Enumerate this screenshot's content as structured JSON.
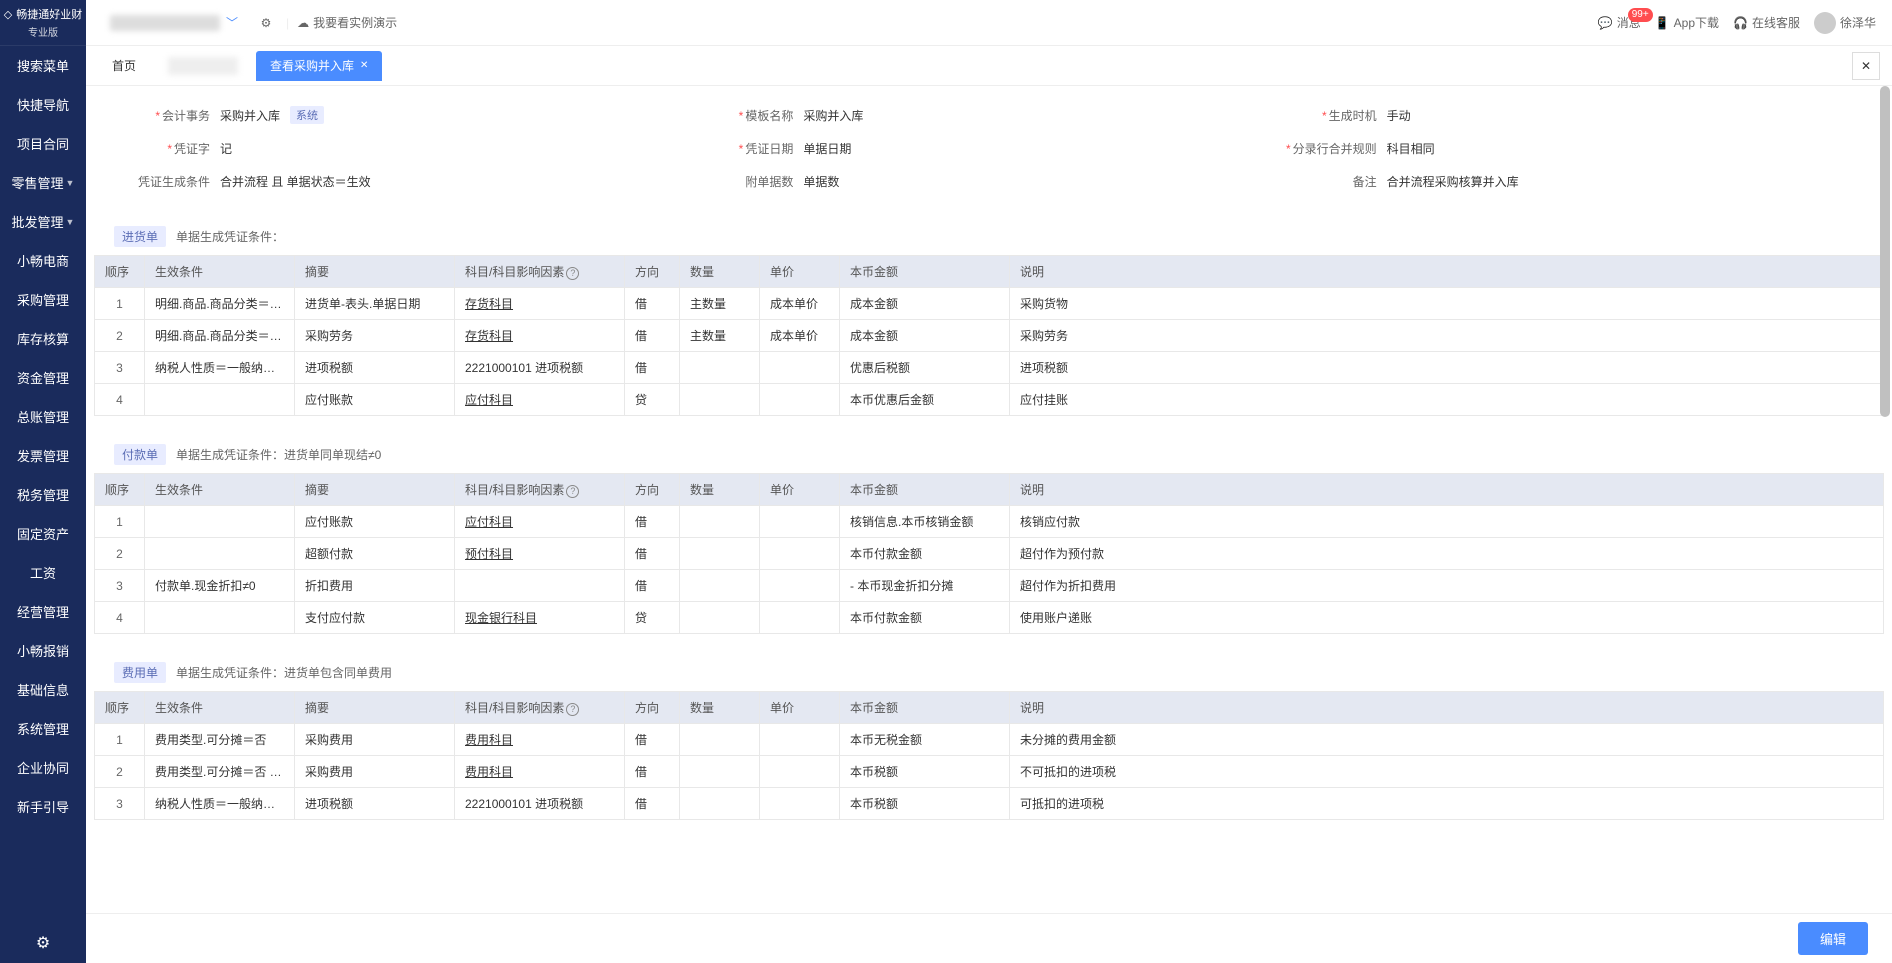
{
  "brand": {
    "name": "畅捷通好业财",
    "edition": "专业版"
  },
  "sidebar": {
    "items": [
      {
        "label": "搜索菜单",
        "expand": false
      },
      {
        "label": "快捷导航",
        "expand": false
      },
      {
        "label": "项目合同",
        "expand": false
      },
      {
        "label": "零售管理",
        "expand": true
      },
      {
        "label": "批发管理",
        "expand": true
      },
      {
        "label": "小畅电商",
        "expand": false
      },
      {
        "label": "采购管理",
        "expand": false
      },
      {
        "label": "库存核算",
        "expand": false
      },
      {
        "label": "资金管理",
        "expand": false
      },
      {
        "label": "总账管理",
        "expand": false
      },
      {
        "label": "发票管理",
        "expand": false
      },
      {
        "label": "税务管理",
        "expand": false
      },
      {
        "label": "固定资产",
        "expand": false
      },
      {
        "label": "工资",
        "expand": false
      },
      {
        "label": "经营管理",
        "expand": false
      },
      {
        "label": "小畅报销",
        "expand": false
      },
      {
        "label": "基础信息",
        "expand": false
      },
      {
        "label": "系统管理",
        "expand": false
      },
      {
        "label": "企业协同",
        "expand": false
      },
      {
        "label": "新手引导",
        "expand": false
      }
    ]
  },
  "topbar": {
    "demo": "我要看实例演示",
    "msg": "消息",
    "msg_badge": "99+",
    "download": "App下载",
    "service": "在线客服",
    "user": "徐泽华"
  },
  "tabs": {
    "home": "首页",
    "active": "查看采购并入库"
  },
  "form": {
    "biz_label": "会计事务",
    "biz_value": "采购并入库",
    "biz_tag": "系统",
    "tpl_label": "模板名称",
    "tpl_value": "采购并入库",
    "time_label": "生成时机",
    "time_value": "手动",
    "word_label": "凭证字",
    "word_value": "记",
    "date_label": "凭证日期",
    "date_value": "单据日期",
    "merge_label": "分录行合并规则",
    "merge_value": "科目相同",
    "cond_label": "凭证生成条件",
    "cond_value": "合并流程 且 单据状态＝生效",
    "attach_label": "附单据数",
    "attach_value": "单据数",
    "remark_label": "备注",
    "remark_value": "合并流程采购核算并入库"
  },
  "columns": [
    "顺序",
    "生效条件",
    "摘要",
    "科目/科目影响因素",
    "方向",
    "数量",
    "单价",
    "本币金额",
    "说明"
  ],
  "col_widths": [
    "50px",
    "150px",
    "160px",
    "170px",
    "55px",
    "80px",
    "80px",
    "170px",
    "auto"
  ],
  "sections": [
    {
      "tag": "进货单",
      "cond": "单据生成凭证条件：",
      "rows": [
        {
          "idx": "1",
          "cond": "明细.商品.商品分类＝货物",
          "summary": "进货单-表头.单据日期",
          "subject": "存货科目",
          "underline": true,
          "dir": "借",
          "qty": "主数量",
          "price": "成本单价",
          "amount": "成本金额",
          "note": "采购货物"
        },
        {
          "idx": "2",
          "cond": "明细.商品.商品分类＝劳务",
          "summary": "采购劳务",
          "subject": "存货科目",
          "underline": true,
          "dir": "借",
          "qty": "主数量",
          "price": "成本单价",
          "amount": "成本金额",
          "note": "采购劳务"
        },
        {
          "idx": "3",
          "cond": "纳税人性质＝一般纳税人 且 发",
          "summary": "进项税额",
          "subject": "2221000101 进项税额",
          "underline": false,
          "dir": "借",
          "qty": "",
          "price": "",
          "amount": "优惠后税额",
          "note": "进项税额"
        },
        {
          "idx": "4",
          "cond": "",
          "summary": "应付账款",
          "subject": "应付科目",
          "underline": true,
          "dir": "贷",
          "qty": "",
          "price": "",
          "amount": "本币优惠后金额",
          "note": "应付挂账"
        }
      ]
    },
    {
      "tag": "付款单",
      "cond": "单据生成凭证条件：进货单同单现结≠0",
      "rows": [
        {
          "idx": "1",
          "cond": "",
          "summary": "应付账款",
          "subject": "应付科目",
          "underline": true,
          "dir": "借",
          "qty": "",
          "price": "",
          "amount": "核销信息.本币核销金额",
          "note": "核销应付款"
        },
        {
          "idx": "2",
          "cond": "",
          "summary": "超额付款",
          "subject": "预付科目",
          "underline": true,
          "dir": "借",
          "qty": "",
          "price": "",
          "amount": "本币付款金额",
          "note": "超付作为预付款"
        },
        {
          "idx": "3",
          "cond": "付款单.现金折扣≠0",
          "summary": "折扣费用",
          "subject": "",
          "underline": false,
          "dir": "借",
          "qty": "",
          "price": "",
          "amount": "- 本币现金折扣分摊",
          "note": "超付作为折扣费用"
        },
        {
          "idx": "4",
          "cond": "",
          "summary": "支付应付款",
          "subject": "现金银行科目",
          "underline": true,
          "dir": "贷",
          "qty": "",
          "price": "",
          "amount": "本币付款金额",
          "note": "使用账户递账"
        }
      ]
    },
    {
      "tag": "费用单",
      "cond": "单据生成凭证条件：进货单包含同单费用",
      "rows": [
        {
          "idx": "1",
          "cond": "费用类型.可分摊＝否",
          "summary": "采购费用",
          "subject": "费用科目",
          "underline": true,
          "dir": "借",
          "qty": "",
          "price": "",
          "amount": "本币无税金额",
          "note": "未分摊的费用金额"
        },
        {
          "idx": "2",
          "cond": "费用类型.可分摊＝否 且 (纳税",
          "summary": "采购费用",
          "subject": "费用科目",
          "underline": true,
          "dir": "借",
          "qty": "",
          "price": "",
          "amount": "本币税额",
          "note": "不可抵扣的进项税"
        },
        {
          "idx": "3",
          "cond": "纳税人性质＝一般纳税人 且 (",
          "summary": "进项税额",
          "subject": "2221000101 进项税额",
          "underline": false,
          "dir": "借",
          "qty": "",
          "price": "",
          "amount": "本币税额",
          "note": "可抵扣的进项税"
        }
      ]
    }
  ],
  "footer": {
    "edit": "编辑"
  }
}
